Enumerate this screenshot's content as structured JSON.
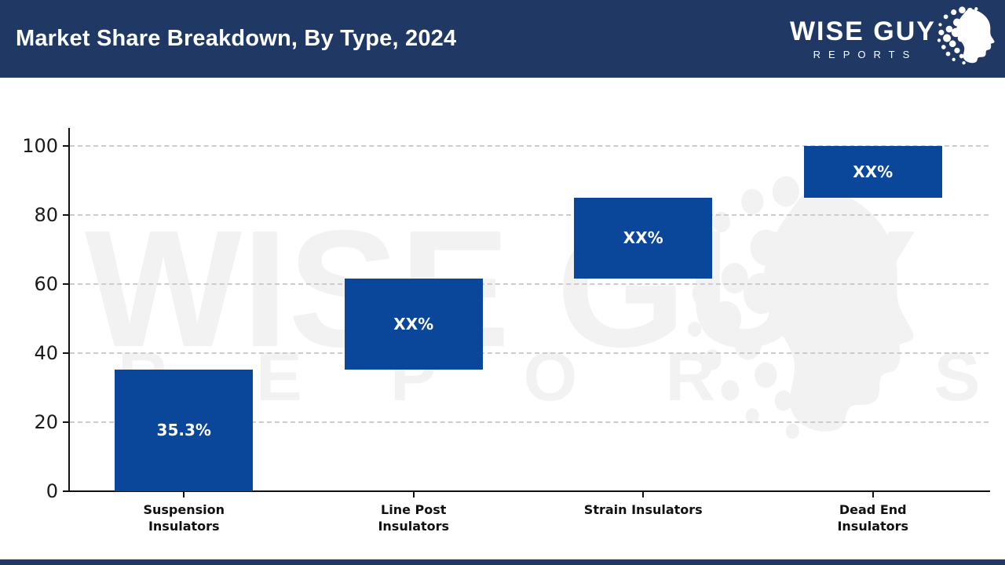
{
  "header": {
    "bg_color": "#1f3864",
    "title": "Market Share Breakdown, By Type, 2024",
    "logo": {
      "primary": "WISE GUY",
      "secondary": "REPORTS"
    }
  },
  "watermark": {
    "line1": "WISE GUY",
    "line2": "R E P O R T S",
    "color": "#f2f2f2"
  },
  "footer": {
    "bg_color": "#1f3864"
  },
  "chart_data": {
    "type": "bar",
    "subtype": "floating-segment-waterfall",
    "title": "Market Share Breakdown, By Type, 2024",
    "categories": [
      "Suspension Insulators",
      "Line Post Insulators",
      "Strain Insulators",
      "Dead End Insulators"
    ],
    "category_lines": [
      [
        "Suspension",
        "Insulators"
      ],
      [
        "Line Post",
        "Insulators"
      ],
      [
        "Strain Insulators"
      ],
      [
        "Dead End",
        "Insulators"
      ]
    ],
    "series": [
      {
        "name": "Market Share %",
        "segments": [
          {
            "category": "Suspension Insulators",
            "start": 0,
            "end": 35.3,
            "label": "35.3%"
          },
          {
            "category": "Line Post Insulators",
            "start": 35.3,
            "end": 61.6,
            "label": "XX%"
          },
          {
            "category": "Strain Insulators",
            "start": 61.6,
            "end": 85,
            "label": "XX%"
          },
          {
            "category": "Dead End Insulators",
            "start": 85,
            "end": 100,
            "label": "XX%"
          }
        ]
      }
    ],
    "xlabel": "",
    "ylabel": "",
    "ylim": [
      0,
      105
    ],
    "yticks": [
      0,
      20,
      40,
      60,
      80,
      100
    ],
    "grid": true,
    "grid_style": "dashed",
    "legend": false,
    "bar_color": "#0a4699",
    "bar_label_color": "#ffffff",
    "axis_color": "#111111",
    "grid_color": "#cccccc",
    "tick_label_color": "#1a1a1a"
  }
}
